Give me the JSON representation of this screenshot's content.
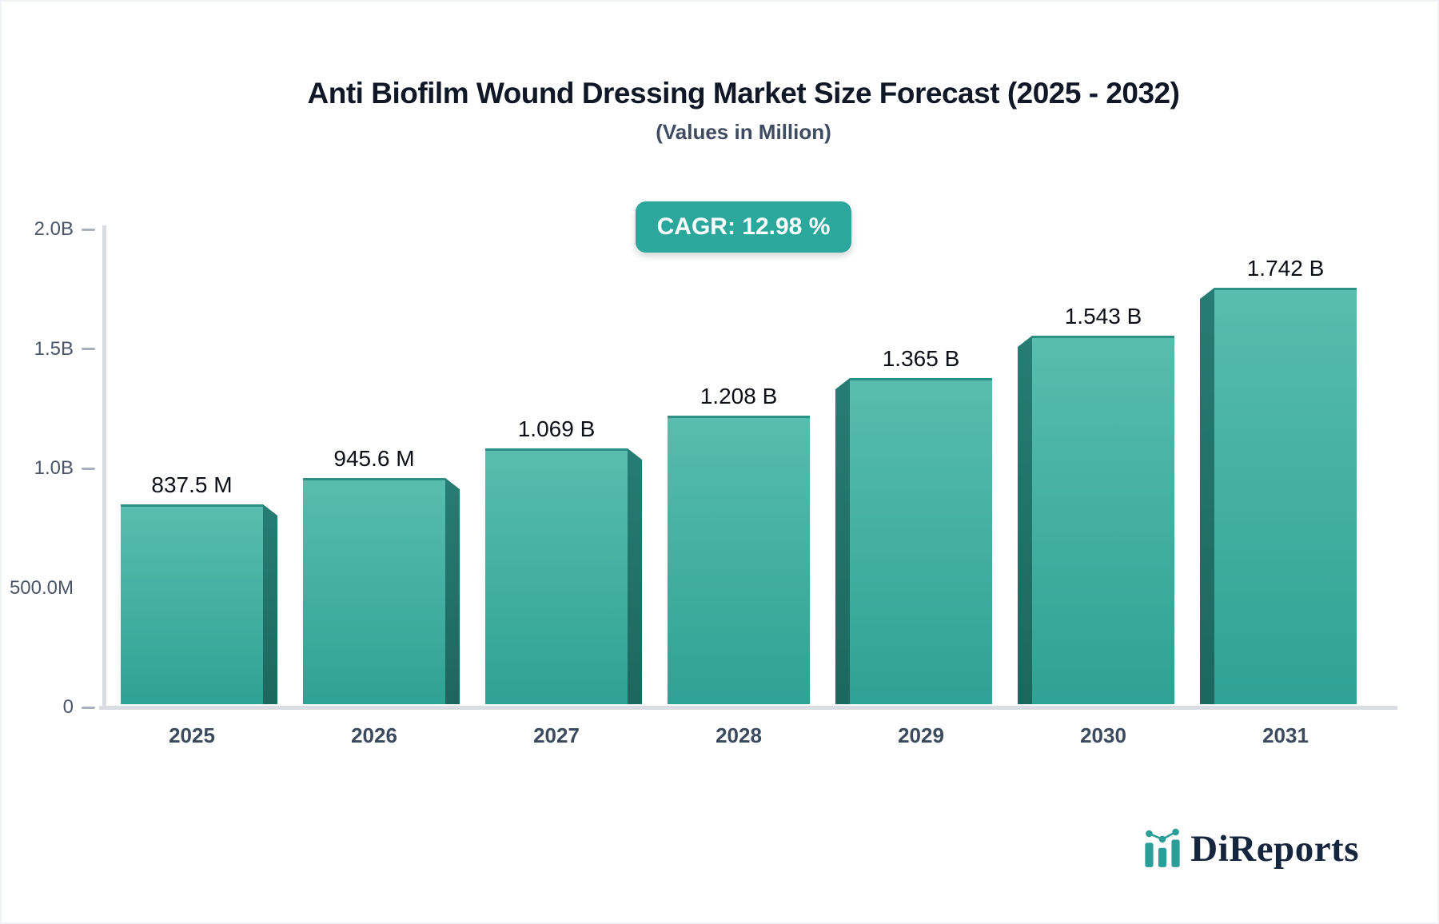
{
  "title": "Anti Biofilm Wound Dressing Market Size Forecast (2025 - 2032)",
  "subtitle": "(Values in Million)",
  "badge": {
    "label": "CAGR: 12.98 %"
  },
  "chart_data": {
    "type": "bar",
    "title": "Anti Biofilm Wound Dressing Market Size Forecast (2025 - 2032)",
    "subtitle": "(Values in Million)",
    "cagr_percent": 12.98,
    "categories": [
      "2025",
      "2026",
      "2027",
      "2028",
      "2029",
      "2030",
      "2031"
    ],
    "values_million": [
      837.5,
      945.6,
      1069,
      1208,
      1365,
      1543,
      1742
    ],
    "bar_labels": [
      "837.5 M",
      "945.6 M",
      "1.069 B",
      "1.208 B",
      "1.365 B",
      "1.543 B",
      "1.742 B"
    ],
    "xlabel": "",
    "ylabel": "",
    "ylim_million": [
      0,
      2000
    ],
    "yticks": [
      {
        "label": "2.0B",
        "value_million": 2000,
        "dash": true
      },
      {
        "label": "1.5B",
        "value_million": 1500,
        "dash": true
      },
      {
        "label": "1.0B",
        "value_million": 1000,
        "dash": true
      },
      {
        "label": "500.0M",
        "value_million": 500,
        "dash": false
      },
      {
        "label": "0",
        "value_million": 0,
        "dash": true
      }
    ],
    "grid": false,
    "legend": false,
    "bar_style": "pseudo-3d, dark side panel faces away from chart center"
  },
  "colors": {
    "badge_bg": "#2ba89b",
    "bar_face_top": "#58bdad",
    "bar_face_bottom": "#2ea294",
    "bar_top_edge": "#2c9184",
    "bar_side_top": "#267d73",
    "bar_side_bottom": "#1c675e",
    "axis_line": "#d9dce1",
    "tick_dash": "#a8b0bb",
    "y_label": "#4b5669",
    "x_label": "#3c4a5e",
    "value_label": "#0c1117",
    "title": "#101828",
    "subtitle": "#3e4b61",
    "logo_text": "#16263e",
    "logo_icon": "#2b9e97"
  },
  "logo": {
    "text": "DiReports",
    "icon": "mini-bar-chart-trend-icon"
  }
}
